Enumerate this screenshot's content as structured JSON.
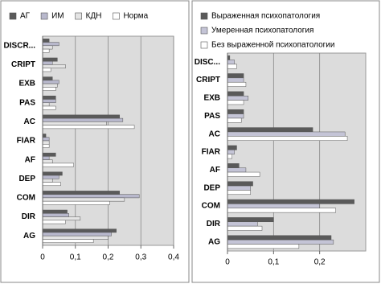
{
  "chart_data": [
    {
      "type": "bar",
      "orientation": "horizontal",
      "legend_position": "top",
      "categories": [
        "DISCR...",
        "CRIPT",
        "EXB",
        "PAS",
        "AC",
        "FIAR",
        "AF",
        "DEP",
        "COM",
        "DIR",
        "AG"
      ],
      "series": [
        {
          "name": "АГ",
          "color": "#5a5a5a",
          "values": [
            0.02,
            0.045,
            0.03,
            0.04,
            0.235,
            0.01,
            0.04,
            0.06,
            0.235,
            0.075,
            0.225
          ]
        },
        {
          "name": "ИМ",
          "color": "#b8b8cc",
          "values": [
            0.05,
            0.03,
            0.05,
            0.04,
            0.245,
            0.02,
            0.02,
            0.05,
            0.295,
            0.08,
            0.21
          ]
        },
        {
          "name": "КДН",
          "color": "#e4e4e4",
          "values": [
            0.03,
            0.07,
            0.045,
            0.02,
            0.195,
            0.02,
            0.03,
            0.03,
            0.25,
            0.115,
            0.2
          ]
        },
        {
          "name": "Норма",
          "color": "#ffffff",
          "values": [
            0.02,
            0.025,
            0.04,
            0.04,
            0.28,
            0.02,
            0.095,
            0.055,
            0.205,
            0.07,
            0.155
          ]
        }
      ],
      "xlim": [
        0,
        0.4
      ],
      "xticks": [
        0,
        {
          "value": 0.1,
          "label": "0,1"
        },
        {
          "value": 0.2,
          "label": "0,2"
        },
        {
          "value": 0.3,
          "label": "0,3"
        },
        {
          "value": 0.4,
          "label": "0,4"
        }
      ],
      "grid": true
    },
    {
      "type": "bar",
      "orientation": "horizontal",
      "legend_position": "top",
      "categories": [
        "DISC...",
        "CRIPT",
        "EXB",
        "PAS",
        "AC",
        "FIAR",
        "AF",
        "DEP",
        "COM",
        "DIR",
        "AG"
      ],
      "series": [
        {
          "name": "Выраженная психопатология",
          "color": "#5a5a5a",
          "values": [
            0.005,
            0.035,
            0.035,
            0.035,
            0.185,
            0.02,
            0.025,
            0.055,
            0.275,
            0.1,
            0.225
          ]
        },
        {
          "name": "Умеренная психопатология",
          "color": "#c4c4d6",
          "values": [
            0.015,
            0.035,
            0.045,
            0.035,
            0.255,
            0.015,
            0.04,
            0.05,
            0.2,
            0.065,
            0.23
          ]
        },
        {
          "name": "Без выраженной психопатологии",
          "color": "#ffffff",
          "values": [
            0.02,
            0.04,
            0.035,
            0.03,
            0.26,
            0.01,
            0.07,
            0.05,
            0.235,
            0.075,
            0.155
          ]
        }
      ],
      "xlim": [
        0,
        0.3
      ],
      "xticks": [
        0,
        {
          "value": 0.1,
          "label": "0,1"
        },
        {
          "value": 0.2,
          "label": "0,2"
        }
      ],
      "grid": true
    }
  ]
}
